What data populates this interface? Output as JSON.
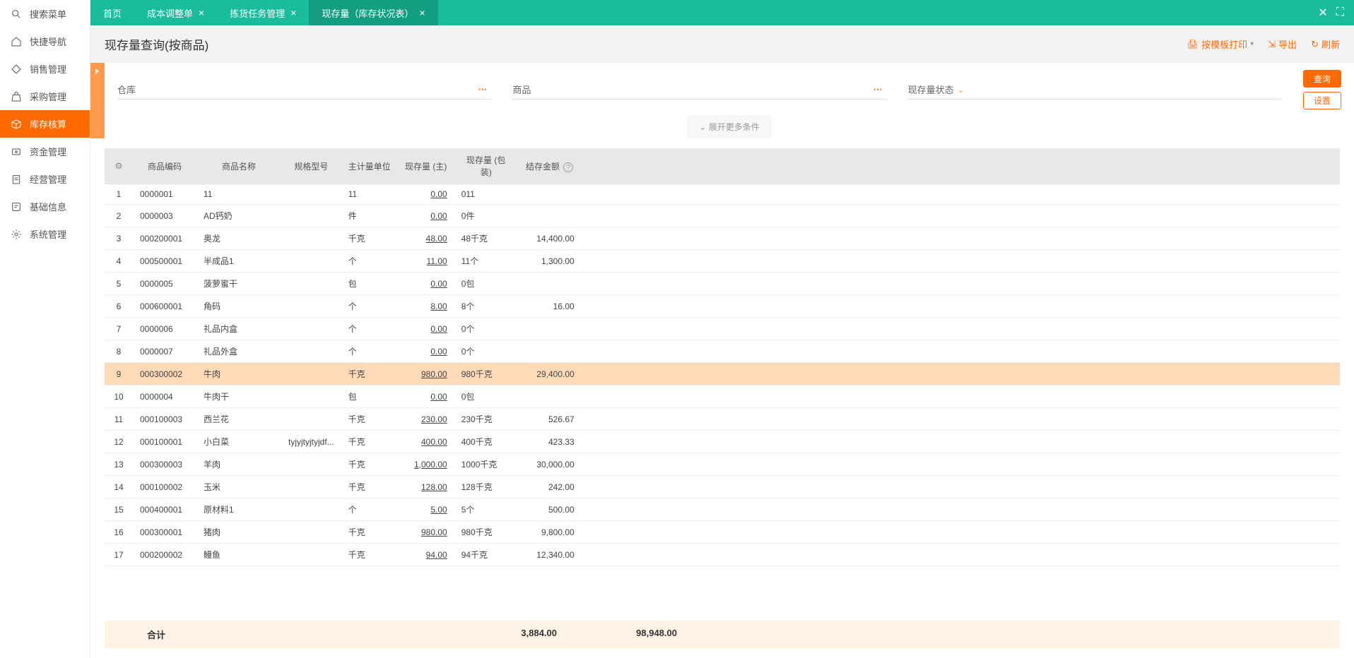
{
  "sidebar": {
    "items": [
      {
        "label": "搜索菜单",
        "icon": "search"
      },
      {
        "label": "快捷导航",
        "icon": "home"
      },
      {
        "label": "销售管理",
        "icon": "tag"
      },
      {
        "label": "采购管理",
        "icon": "bag"
      },
      {
        "label": "库存核算",
        "icon": "box",
        "active": true
      },
      {
        "label": "资金管理",
        "icon": "money"
      },
      {
        "label": "经营管理",
        "icon": "clipboard"
      },
      {
        "label": "基础信息",
        "icon": "info"
      },
      {
        "label": "系统管理",
        "icon": "gear"
      }
    ]
  },
  "tabs": [
    {
      "label": "首页",
      "closable": false
    },
    {
      "label": "成本调整单",
      "closable": true
    },
    {
      "label": "拣货任务管理",
      "closable": true
    },
    {
      "label": "现存量（库存状况表）",
      "closable": true,
      "active": true
    }
  ],
  "page": {
    "title": "现存量查询(按商品)",
    "actions": {
      "print": "按模板打印",
      "export": "导出",
      "refresh": "刷新"
    }
  },
  "filters": {
    "warehouse": {
      "label": "仓库"
    },
    "product": {
      "label": "商品"
    },
    "status": {
      "label": "现存量状态"
    },
    "query_btn": "查询",
    "settings_btn": "设置",
    "expand": "展开更多条件"
  },
  "table": {
    "columns": [
      "商品编码",
      "商品名称",
      "规格型号",
      "主计量单位",
      "现存量 (主)",
      "现存量 (包装)",
      "结存金额"
    ],
    "rows": [
      {
        "idx": 1,
        "code": "0000001",
        "name": "11",
        "spec": "",
        "unit": "11",
        "qty": "0.00",
        "pkg": "011",
        "amt": ""
      },
      {
        "idx": 2,
        "code": "0000003",
        "name": "AD钙奶",
        "spec": "",
        "unit": "件",
        "qty": "0.00",
        "pkg": "0件",
        "amt": ""
      },
      {
        "idx": 3,
        "code": "000200001",
        "name": "奥龙",
        "spec": "",
        "unit": "千克",
        "qty": "48.00",
        "pkg": "48千克",
        "amt": "14,400.00"
      },
      {
        "idx": 4,
        "code": "000500001",
        "name": "半成品1",
        "spec": "",
        "unit": "个",
        "qty": "11.00",
        "pkg": "11个",
        "amt": "1,300.00"
      },
      {
        "idx": 5,
        "code": "0000005",
        "name": "菠萝蜜干",
        "spec": "",
        "unit": "包",
        "qty": "0.00",
        "pkg": "0包",
        "amt": ""
      },
      {
        "idx": 6,
        "code": "000600001",
        "name": "角码",
        "spec": "",
        "unit": "个",
        "qty": "8.00",
        "pkg": "8个",
        "amt": "16.00"
      },
      {
        "idx": 7,
        "code": "0000006",
        "name": "礼品内盒",
        "spec": "",
        "unit": "个",
        "qty": "0.00",
        "pkg": "0个",
        "amt": ""
      },
      {
        "idx": 8,
        "code": "0000007",
        "name": "礼品外盒",
        "spec": "",
        "unit": "个",
        "qty": "0.00",
        "pkg": "0个",
        "amt": ""
      },
      {
        "idx": 9,
        "code": "000300002",
        "name": "牛肉",
        "spec": "",
        "unit": "千克",
        "qty": "980.00",
        "pkg": "980千克",
        "amt": "29,400.00",
        "highlight": true
      },
      {
        "idx": 10,
        "code": "0000004",
        "name": "牛肉干",
        "spec": "",
        "unit": "包",
        "qty": "0.00",
        "pkg": "0包",
        "amt": ""
      },
      {
        "idx": 11,
        "code": "000100003",
        "name": "西兰花",
        "spec": "",
        "unit": "千克",
        "qty": "230.00",
        "pkg": "230千克",
        "amt": "526.67"
      },
      {
        "idx": 12,
        "code": "000100001",
        "name": "小白菜",
        "spec": "tyjyjtyjtyjdf...",
        "unit": "千克",
        "qty": "400.00",
        "pkg": "400千克",
        "amt": "423.33"
      },
      {
        "idx": 13,
        "code": "000300003",
        "name": "羊肉",
        "spec": "",
        "unit": "千克",
        "qty": "1,000.00",
        "pkg": "1000千克",
        "amt": "30,000.00"
      },
      {
        "idx": 14,
        "code": "000100002",
        "name": "玉米",
        "spec": "",
        "unit": "千克",
        "qty": "128.00",
        "pkg": "128千克",
        "amt": "242.00"
      },
      {
        "idx": 15,
        "code": "000400001",
        "name": "原材料1",
        "spec": "",
        "unit": "个",
        "qty": "5.00",
        "pkg": "5个",
        "amt": "500.00"
      },
      {
        "idx": 16,
        "code": "000300001",
        "name": "猪肉",
        "spec": "",
        "unit": "千克",
        "qty": "980.00",
        "pkg": "980千克",
        "amt": "9,800.00"
      },
      {
        "idx": 17,
        "code": "000200002",
        "name": "鳗鱼",
        "spec": "",
        "unit": "千克",
        "qty": "94.00",
        "pkg": "94千克",
        "amt": "12,340.00"
      }
    ],
    "footer": {
      "label": "合计",
      "qty_total": "3,884.00",
      "amt_total": "98,948.00"
    }
  }
}
